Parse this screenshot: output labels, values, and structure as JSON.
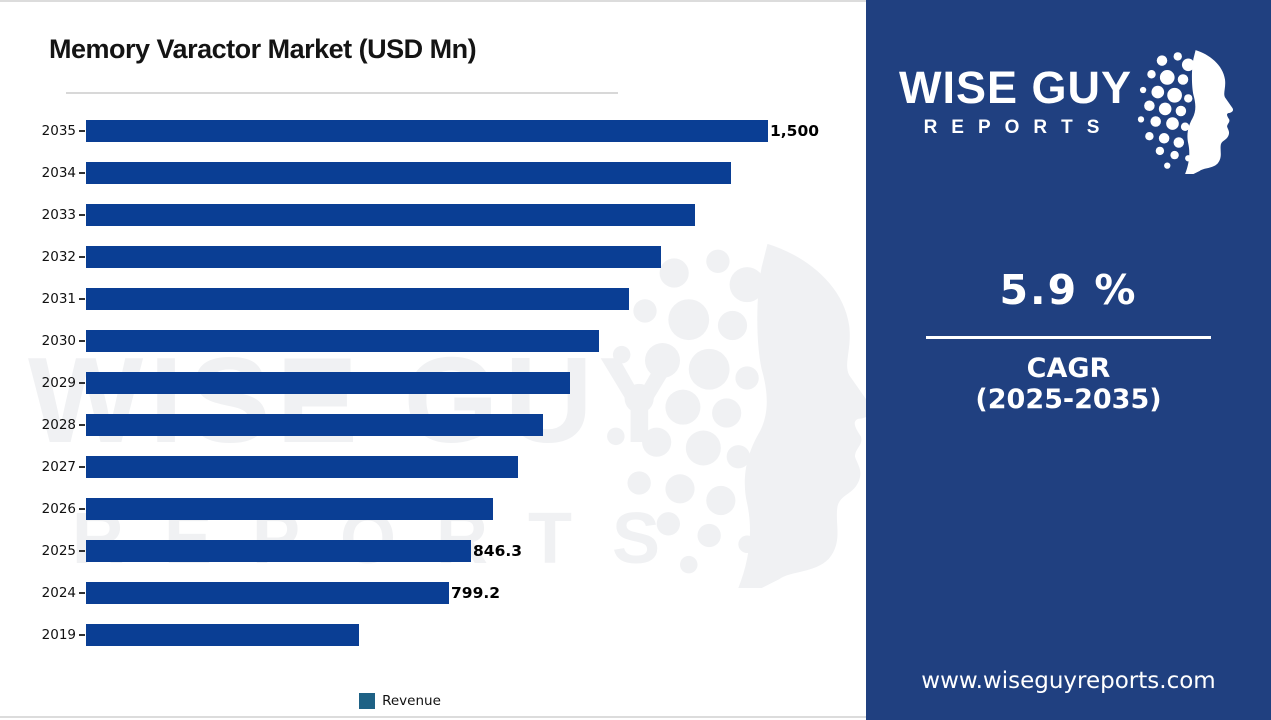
{
  "chart": {
    "title": "Memory Varactor Market (USD Mn)",
    "legend_label": "Revenue",
    "bar_color": "#0a3e94",
    "legend_color": "#1e6185"
  },
  "chart_data": {
    "type": "bar",
    "orientation": "horizontal",
    "title": "Memory Varactor Market (USD Mn)",
    "unit": "USD Mn",
    "categories": [
      "2035",
      "2034",
      "2033",
      "2032",
      "2031",
      "2030",
      "2029",
      "2028",
      "2027",
      "2026",
      "2025",
      "2024",
      "2019"
    ],
    "values": [
      1500,
      1417.7,
      1338.7,
      1264.1,
      1193.7,
      1127.2,
      1064.4,
      1005.1,
      949.1,
      896.2,
      846.3,
      799.2,
      600
    ],
    "bar_labels": [
      "1,500",
      "",
      "",
      "",
      "",
      "",
      "",
      "",
      "",
      "",
      "846.3",
      "799.2",
      ""
    ],
    "xlim": [
      0,
      1500
    ],
    "category_order": "top-to-bottom",
    "grid": false,
    "legend": [
      "Revenue"
    ],
    "legend_position": "bottom-center"
  },
  "side_panel": {
    "bg_color": "#204080",
    "logo_line1": "WISE GUY",
    "logo_line2": "REPORTS",
    "cagr_value": "5.9 %",
    "cagr_label_line1": "CAGR",
    "cagr_label_line2": "(2025-2035)",
    "website": "www.wiseguyreports.com"
  },
  "watermark": {
    "line1": "WISE GUY",
    "line2": "REPORTS"
  }
}
